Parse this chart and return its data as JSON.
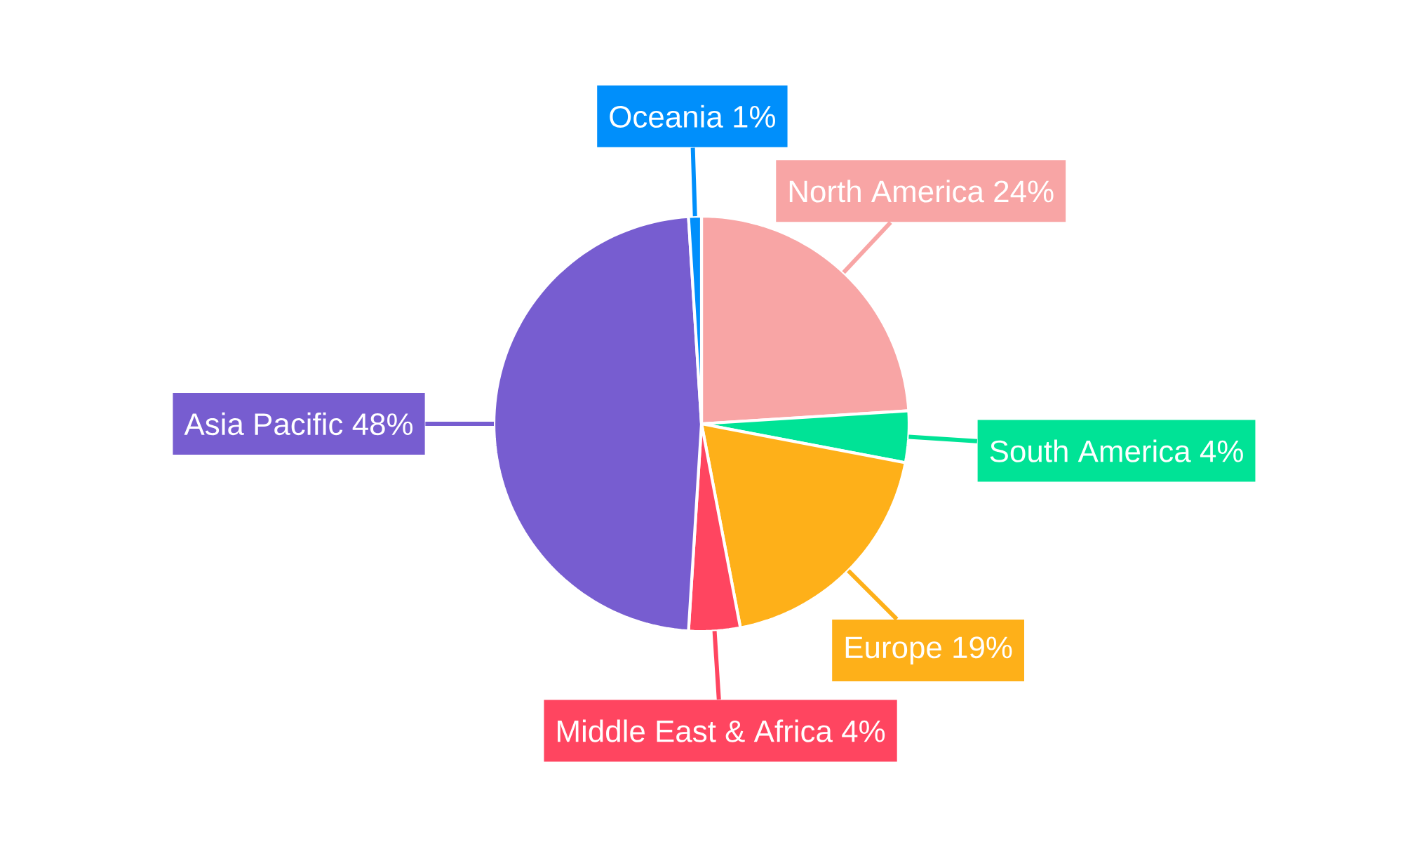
{
  "chart_data": {
    "type": "pie",
    "categories": [
      "North America",
      "South America",
      "Europe",
      "Middle East & Africa",
      "Asia Pacific",
      "Oceania"
    ],
    "values": [
      24,
      4,
      19,
      4,
      48,
      1
    ],
    "value_labels": [
      "24%",
      "4%",
      "19%",
      "4%",
      "48%",
      "1%"
    ],
    "colors": [
      "#f8a5a5",
      "#00e396",
      "#feb019",
      "#ff4560",
      "#775dd0",
      "#008ffb"
    ]
  }
}
